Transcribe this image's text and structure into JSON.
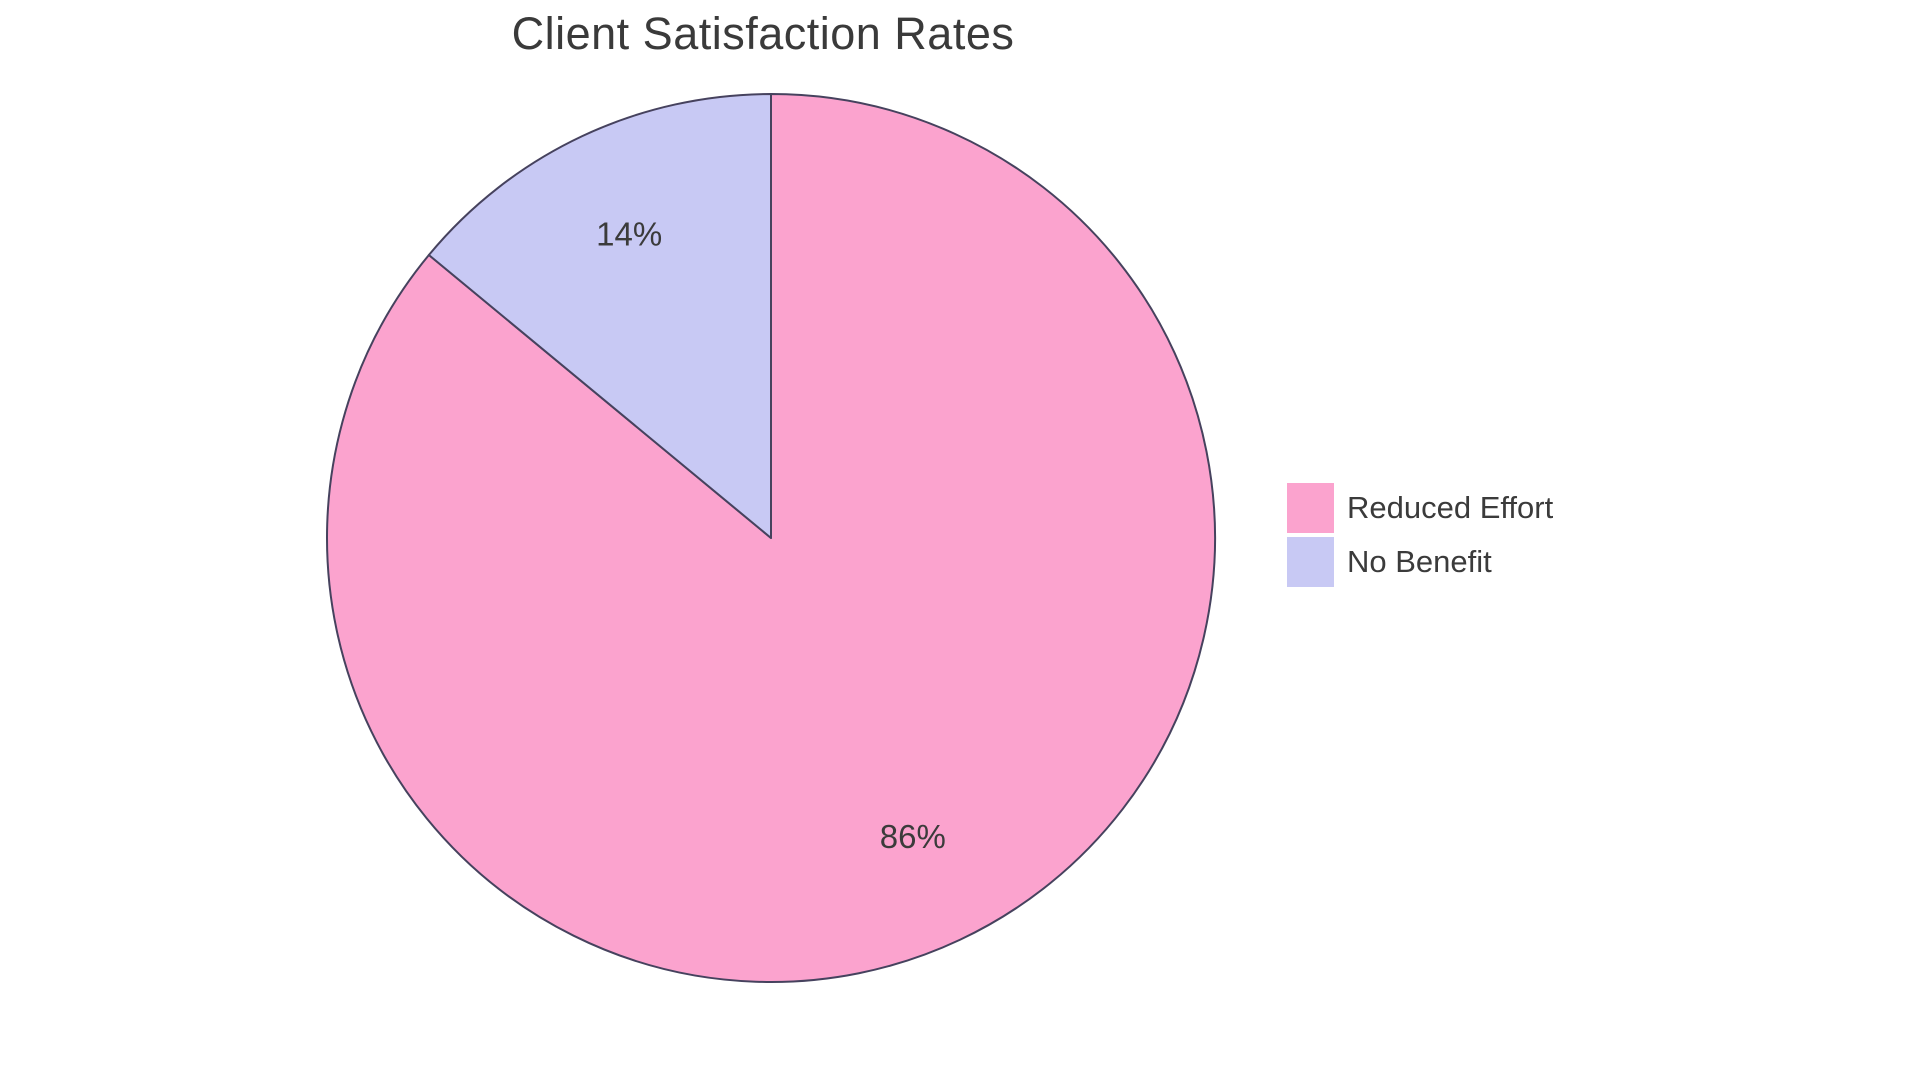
{
  "chart_data": {
    "type": "pie",
    "title": "Client Satisfaction Rates",
    "slices": [
      {
        "label": "Reduced Effort",
        "value": 86,
        "pct_label": "86%",
        "color": "#FBA3CE"
      },
      {
        "label": "No Benefit",
        "value": 14,
        "pct_label": "14%",
        "color": "#C8C9F4"
      }
    ],
    "start_angle_deg": 90,
    "direction": "clockwise",
    "edge_color": "#46425E",
    "edge_width": 2,
    "pct_distance": 0.75,
    "legend_position": "right",
    "legend_frame": false,
    "background_color": "#FFFFFF",
    "text_color": "#3B3B3B"
  }
}
